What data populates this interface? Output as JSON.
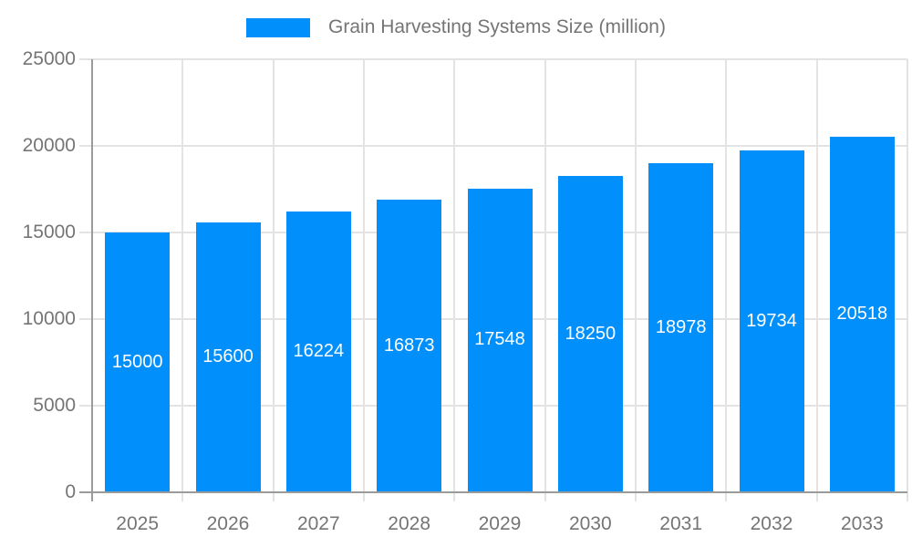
{
  "chart_data": {
    "type": "bar",
    "title": "Grain Harvesting Systems Size (million)",
    "categories": [
      "2025",
      "2026",
      "2027",
      "2028",
      "2029",
      "2030",
      "2031",
      "2032",
      "2033"
    ],
    "values": [
      15000,
      15600,
      16224,
      16873,
      17548,
      18250,
      18978,
      19734,
      20518
    ],
    "xlabel": "",
    "ylabel": "",
    "ylim": [
      0,
      25000
    ],
    "yticks": [
      0,
      5000,
      10000,
      15000,
      20000,
      25000
    ],
    "grid": true,
    "legend_position": "top-center",
    "value_labels_position": "inside-center",
    "colors": {
      "bar": "#008FFB",
      "grid": "#e3e3e3",
      "axis": "#9b9b9b",
      "tick_label": "#757575",
      "legend_text": "#757575",
      "value_label": "#ffffff",
      "background": "#ffffff"
    }
  }
}
